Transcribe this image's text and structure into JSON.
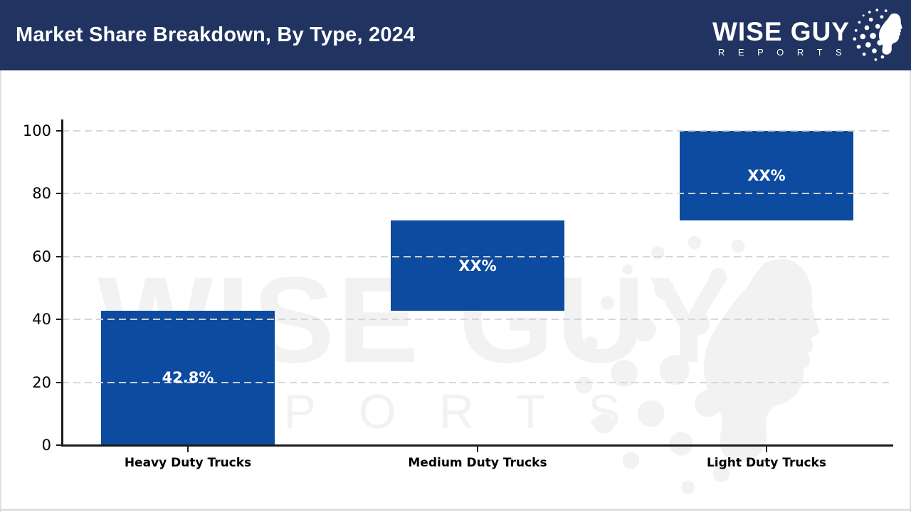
{
  "header": {
    "title": "Market Share Breakdown, By Type, 2024",
    "logo": {
      "line1": "WISE GUY",
      "line2": "REPORTS"
    }
  },
  "watermark": {
    "line1": "WISE GUY",
    "line2": "REPORTS"
  },
  "colors": {
    "header_bg": "#203361",
    "bar": "#0c4b9f",
    "bar_label_text": "#ffffff",
    "grid": "#d5d5d5",
    "axis": "#1a1a1a",
    "watermark": "#f2f2f2"
  },
  "chart_data": {
    "type": "bar",
    "subtype": "waterfall",
    "title": "Market Share Breakdown, By Type, 2024",
    "xlabel": "",
    "ylabel": "",
    "categories": [
      "Heavy Duty Trucks",
      "Medium Duty Trucks",
      "Light Duty Trucks"
    ],
    "segments": [
      {
        "category": "Heavy Duty Trucks",
        "start": 0,
        "end": 42.8,
        "label": "42.8%"
      },
      {
        "category": "Medium Duty Trucks",
        "start": 42.8,
        "end": 71.4,
        "label": "XX%"
      },
      {
        "category": "Light Duty Trucks",
        "start": 71.4,
        "end": 100,
        "label": "XX%"
      }
    ],
    "ylim": [
      0,
      100
    ],
    "yticks": [
      0,
      20,
      40,
      60,
      80,
      100
    ],
    "grid": "horizontal-dashed",
    "legend": "none"
  }
}
